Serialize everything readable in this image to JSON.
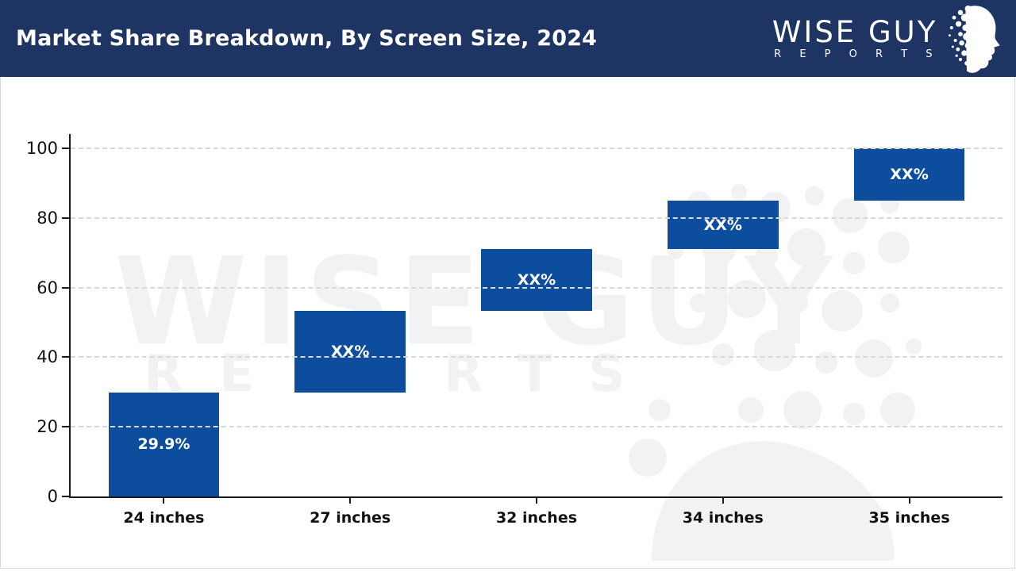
{
  "header": {
    "title": "Market Share Breakdown, By Screen Size, 2024",
    "bg_color": "#1e3563",
    "logo": {
      "line1": "WISE GUY",
      "line2": "R E P O R T S"
    }
  },
  "watermark": {
    "line1": "WISE GUY",
    "line2": "REPORTS"
  },
  "chart_data": {
    "type": "bar",
    "variant": "waterfall",
    "title": "Market Share Breakdown, By Screen Size, 2024",
    "categories": [
      "24 inches",
      "27 inches",
      "32 inches",
      "34 inches",
      "35 inches"
    ],
    "segments": [
      {
        "category": "24 inches",
        "start": 0,
        "end": 29.9,
        "label": "29.9%"
      },
      {
        "category": "27 inches",
        "start": 29.9,
        "end": 53.4,
        "label": "XX%"
      },
      {
        "category": "32 inches",
        "start": 53.4,
        "end": 71.0,
        "label": "XX%"
      },
      {
        "category": "34 inches",
        "start": 71.0,
        "end": 85.0,
        "label": "XX%"
      },
      {
        "category": "35 inches",
        "start": 85.0,
        "end": 100.0,
        "label": "XX%"
      }
    ],
    "ylim": [
      0,
      100
    ],
    "yticks": [
      0,
      20,
      40,
      60,
      80,
      100
    ],
    "xlabel": "",
    "ylabel": "",
    "grid": "horizontal-dashed",
    "legend": "none",
    "bar_color": "#0d4d9e",
    "bar_label_color": "#ffffff",
    "axis_color": "#1a1a1a",
    "gridline_color": "#d8d8d8"
  }
}
